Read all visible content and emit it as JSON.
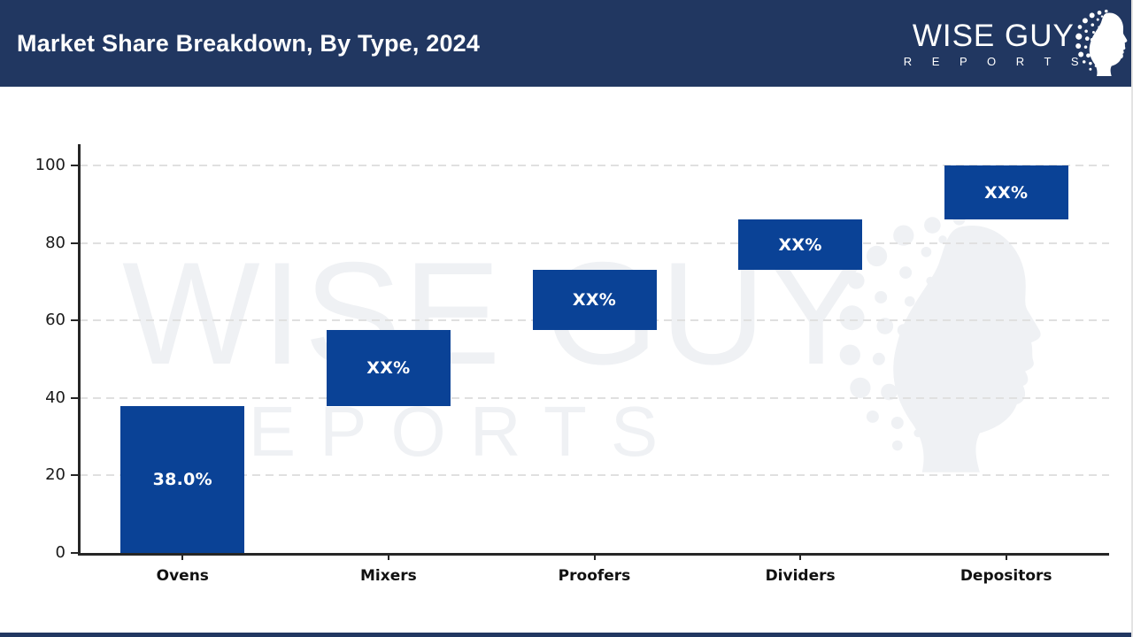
{
  "header": {
    "title": "Market Share Breakdown, By Type, 2024",
    "logo": {
      "line1": "WISE GUY",
      "line2": "R E P O R T S"
    }
  },
  "watermark": {
    "line1": "WISE GUY",
    "line2": "REPORTS"
  },
  "colors": {
    "header_navy": "#213761",
    "bar_blue": "#0a4296",
    "watermark_gray": "#eff1f4",
    "grid_gray": "#e0e0e0",
    "axis_dark": "#262626",
    "label_white": "#ffffff"
  },
  "chart_data": {
    "type": "bar",
    "subtype": "waterfall",
    "title": "Market Share Breakdown, By Type, 2024",
    "categories": [
      "Ovens",
      "Mixers",
      "Proofers",
      "Dividers",
      "Depositors"
    ],
    "segments": [
      {
        "category": "Ovens",
        "start": 0,
        "end": 38,
        "label": "38.0%"
      },
      {
        "category": "Mixers",
        "start": 38,
        "end": 57.5,
        "label": "XX%"
      },
      {
        "category": "Proofers",
        "start": 57.5,
        "end": 73,
        "label": "XX%"
      },
      {
        "category": "Dividers",
        "start": 73,
        "end": 86,
        "label": "XX%"
      },
      {
        "category": "Depositors",
        "start": 86,
        "end": 100,
        "label": "XX%"
      }
    ],
    "yticks": [
      0,
      20,
      40,
      60,
      80,
      100
    ],
    "ylim": [
      0,
      100
    ],
    "xlabel": "",
    "ylabel": "",
    "grid": true,
    "grid_style": "dashed",
    "legend": false,
    "bar_color": "#0a4296",
    "value_labels_inside": true
  }
}
